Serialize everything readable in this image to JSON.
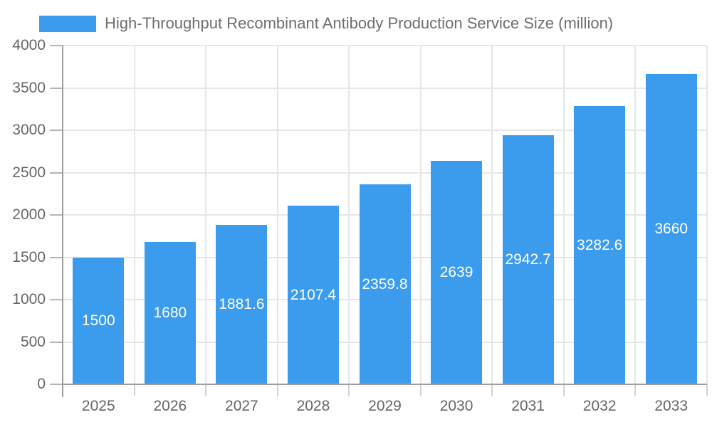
{
  "legend": {
    "label": "High-Throughput Recombinant Antibody Production Service Size (million)"
  },
  "chart_data": {
    "type": "bar",
    "title": "High-Throughput Recombinant Antibody Production Service Size (million)",
    "series_name": "High-Throughput Recombinant Antibody Production Service Size (million)",
    "categories": [
      "2025",
      "2026",
      "2027",
      "2028",
      "2029",
      "2030",
      "2031",
      "2032",
      "2033"
    ],
    "values": [
      1500,
      1680,
      1881.6,
      2107.4,
      2359.8,
      2639,
      2942.7,
      3282.6,
      3660
    ],
    "value_labels": [
      "1500",
      "1680",
      "1881.6",
      "2107.4",
      "2359.8",
      "2639",
      "2942.7",
      "3282.6",
      "3660"
    ],
    "xlabel": "",
    "ylabel": "",
    "ylim": [
      0,
      4000
    ],
    "yticks": [
      0,
      500,
      1000,
      1500,
      2000,
      2500,
      3000,
      3500,
      4000
    ],
    "grid": true,
    "legend_position": "top-left",
    "value_label_position": "inside-center",
    "bar_color": "#3B9CEE",
    "value_label_color": "#FFFFFF",
    "axis_text_color": "#666666",
    "gridline_color": "#E6E6E6",
    "axis_line_color": "#9E9E9E"
  }
}
